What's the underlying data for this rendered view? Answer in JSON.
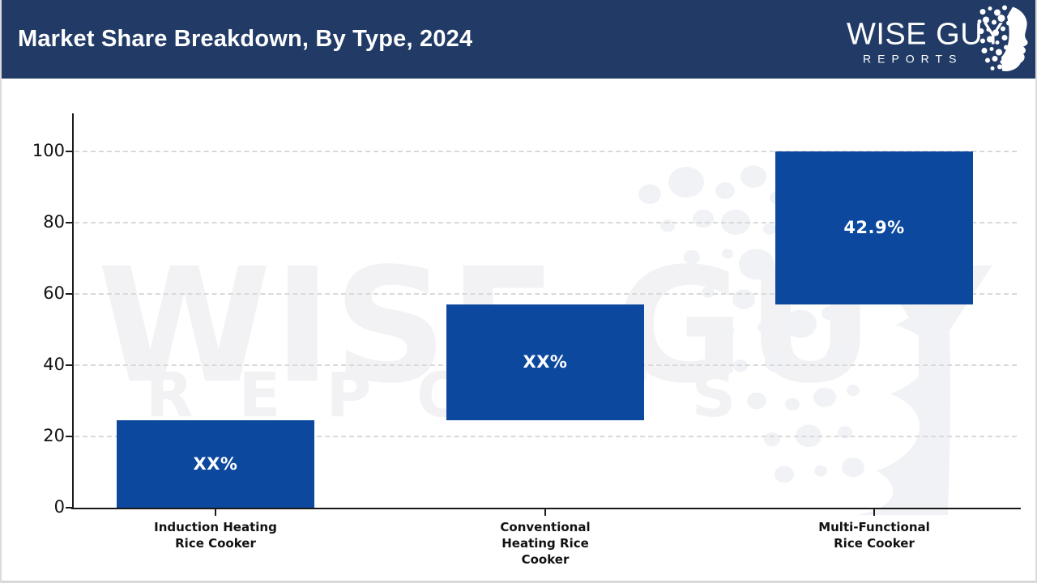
{
  "header": {
    "title": "Market Share Breakdown, By Type, 2024",
    "logo": {
      "line1": "WISE GUY",
      "line2": "REPORTS"
    }
  },
  "watermark": {
    "line1": "WISE GUY",
    "line2": "REPORTS"
  },
  "chart_data": {
    "type": "bar",
    "subtype": "waterfall",
    "title": "Market Share Breakdown, By Type, 2024",
    "categories": [
      "Induction Heating\nRice Cooker",
      "Conventional\nHeating Rice\nCooker",
      "Multi-Functional\nRice Cooker"
    ],
    "series": [
      {
        "name": "Market Share %",
        "segments": [
          {
            "category": "Induction Heating Rice Cooker",
            "start": 0,
            "end": 24.5,
            "label": "XX%"
          },
          {
            "category": "Conventional Heating Rice Cooker",
            "start": 24.5,
            "end": 57.1,
            "label": "XX%"
          },
          {
            "category": "Multi-Functional Rice Cooker",
            "start": 57.1,
            "end": 100,
            "label": "42.9%"
          }
        ]
      }
    ],
    "ylim": [
      0,
      100
    ],
    "yticks": [
      0,
      20,
      40,
      60,
      80,
      100
    ],
    "xlabel": "",
    "ylabel": "",
    "grid": "horizontal-dashed",
    "legend": "none",
    "bar_color": "#0c489e",
    "bar_label_color": "#ffffff",
    "header_color": "#213a66",
    "gridline_color": "#d9d9d9"
  }
}
